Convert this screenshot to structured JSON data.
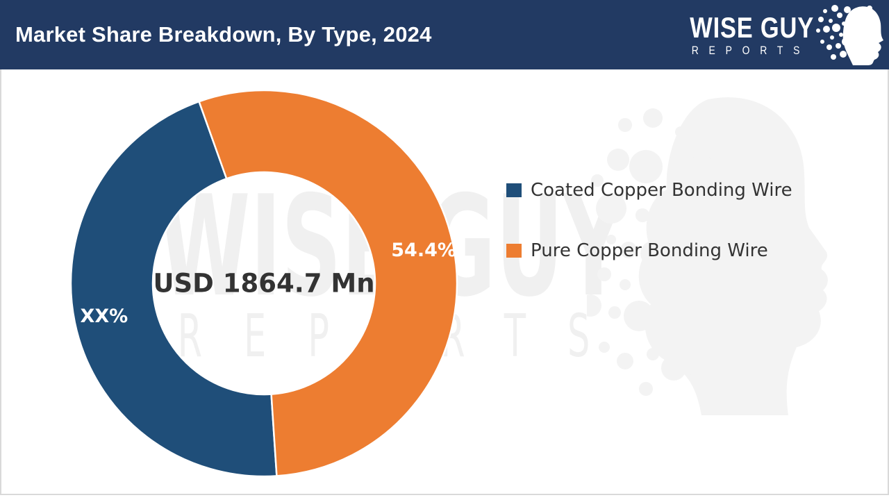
{
  "header": {
    "title": "Market Share Breakdown, By Type, 2024",
    "logo": {
      "line1": "WISE GUY",
      "line2": "REPORTS"
    }
  },
  "watermark": {
    "line1": "WISE GUY",
    "line2": "REPORTS"
  },
  "chart_data": {
    "type": "donut",
    "title": "Market Share Breakdown, By Type, 2024",
    "center_label": "USD 1864.7 Mn",
    "start_angle_deg": -183.8,
    "legend_position": "right",
    "segments": [
      {
        "label": "Coated Copper Bonding Wire",
        "value_pct": 45.6,
        "display_label": "XX%",
        "color": "#1f4e79"
      },
      {
        "label": "Pure Copper Bonding Wire",
        "value_pct": 54.4,
        "display_label": "54.4%",
        "color": "#ed7d31"
      }
    ]
  },
  "colors": {
    "header_bg": "#223a63",
    "text_dark": "#333333",
    "watermark": "#f0f0f0",
    "watermark_face": "#f3f3f3",
    "border": "#d9d9d9",
    "label_text": "#ffffff"
  }
}
